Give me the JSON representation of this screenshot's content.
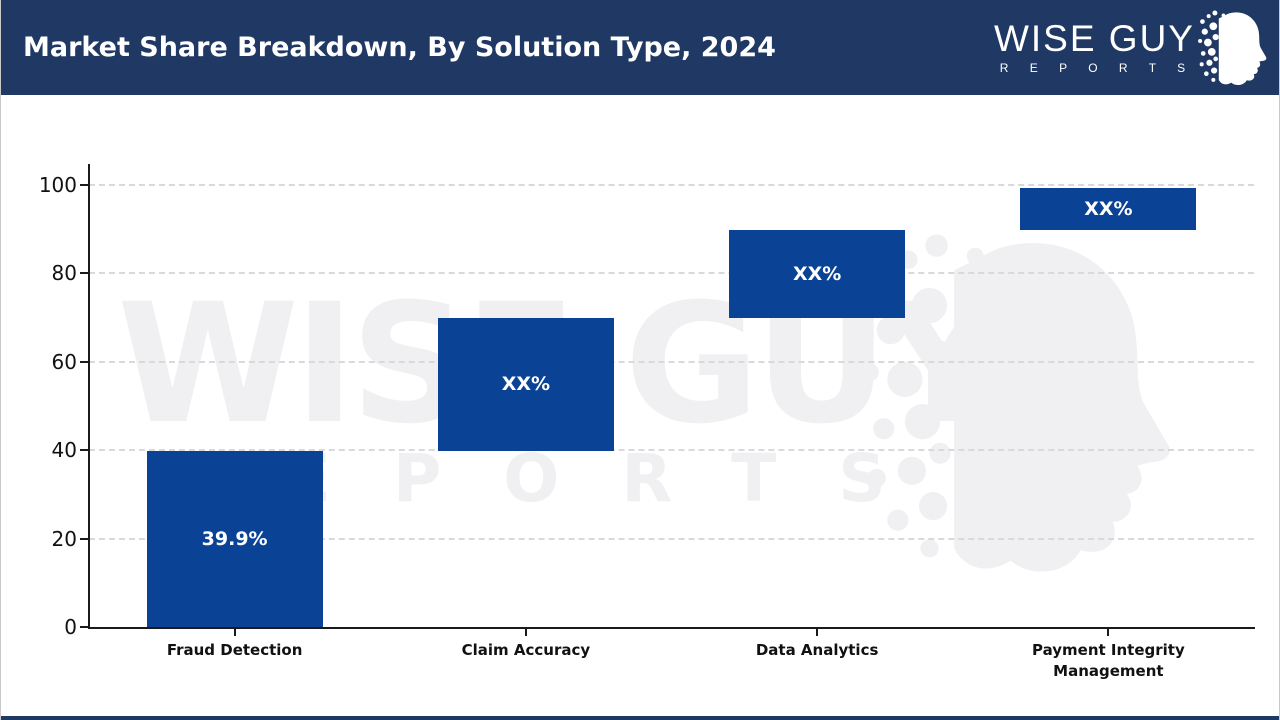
{
  "header": {
    "title": "Market Share Breakdown, By Solution Type, 2024"
  },
  "logo": {
    "line1": "WISE GUY",
    "line2": "R E P O R T S",
    "icon": "head-profile-dots-icon"
  },
  "watermark": {
    "line1": "WISE GUY",
    "line2": "REPORTS",
    "icon": "head-profile-dots-icon"
  },
  "colors": {
    "header_bg": "#1f3864",
    "footer_bar": "#1f3864",
    "bar": "#0a4296",
    "bar_label_text": "#ffffff",
    "gridline": "#d9d9d9",
    "axis": "#1a1a1a",
    "watermark": "#f0f0f2"
  },
  "chart_data": {
    "type": "bar",
    "subtype": "waterfall",
    "title": "Market Share Breakdown, By Solution Type, 2024",
    "categories": [
      "Fraud Detection",
      "Claim Accuracy",
      "Data Analytics",
      "Payment Integrity Management"
    ],
    "segments": [
      {
        "category": "Fraud Detection",
        "base": 0,
        "top": 39.9,
        "label": "39.9%"
      },
      {
        "category": "Claim Accuracy",
        "base": 39.9,
        "top": 69.9,
        "label": "XX%"
      },
      {
        "category": "Data Analytics",
        "base": 69.9,
        "top": 89.8,
        "label": "XX%"
      },
      {
        "category": "Payment Integrity Management",
        "base": 89.8,
        "top": 99.3,
        "label": "XX%"
      }
    ],
    "xlabel": "",
    "ylabel": "",
    "ylim": [
      0,
      100
    ],
    "yticks": [
      0,
      20,
      40,
      60,
      80,
      100
    ],
    "grid": "dashed-horizontal",
    "legend": "none",
    "bar_color": "#0a4296",
    "value_label_position": "center-of-bar"
  }
}
